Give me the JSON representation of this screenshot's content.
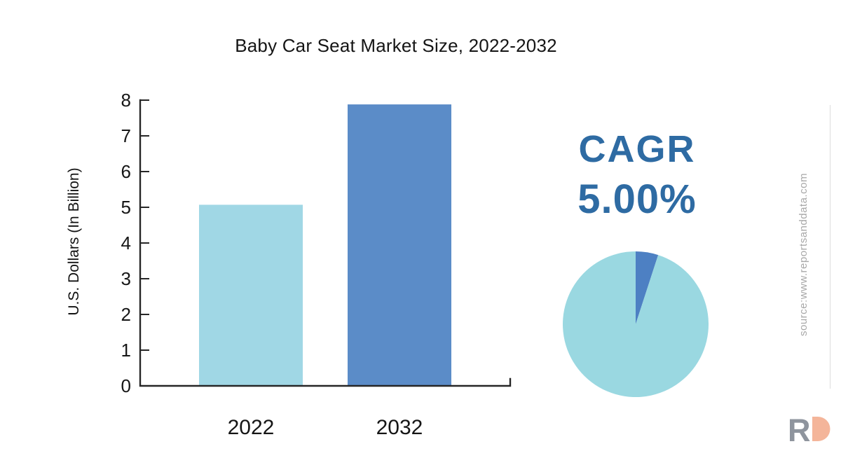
{
  "title": "Baby Car Seat Market Size, 2022-2032",
  "chart_data": [
    {
      "type": "bar",
      "title": "Baby Car Seat Market Size, 2022-2032",
      "categories": [
        "2022",
        "2032"
      ],
      "values": [
        5.07,
        7.88
      ],
      "xlabel": "",
      "ylabel": "U.S. Dollars (In Billion)",
      "ylim": [
        0,
        8
      ],
      "yticks": [
        0,
        1,
        2,
        3,
        4,
        5,
        6,
        7,
        8
      ],
      "bar_colors": [
        "#a0d7e5",
        "#5b8cc8"
      ],
      "grid": false,
      "legend": false
    },
    {
      "type": "pie",
      "title": "CAGR share",
      "start_angle_deg": -90,
      "direction": "clockwise",
      "slices": [
        {
          "label": "CAGR 5.00%",
          "value": 5,
          "color": "#4d80c3"
        },
        {
          "label": "remainder",
          "value": 95,
          "color": "#9ad8e1"
        }
      ]
    }
  ],
  "cagr": {
    "label": "CAGR",
    "value": "5.00%",
    "color": "#2e6ba3"
  },
  "source": {
    "text": "source:www.reportsanddata.com"
  },
  "logo": {
    "letter": "R",
    "letter_color": "#8e949d",
    "shape_color": "#f4b59a"
  },
  "colors": {
    "axis": "#262626",
    "tick_text": "#161616",
    "title_text": "#151515",
    "background": "#ffffff"
  }
}
